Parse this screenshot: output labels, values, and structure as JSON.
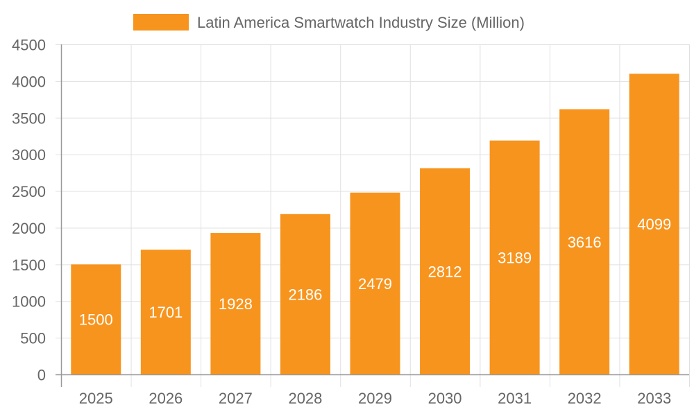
{
  "chart_data": {
    "type": "bar",
    "title": "",
    "xlabel": "",
    "ylabel": "",
    "categories": [
      "2025",
      "2026",
      "2027",
      "2028",
      "2029",
      "2030",
      "2031",
      "2032",
      "2033"
    ],
    "series": [
      {
        "name": "Latin America Smartwatch Industry Size (Million)",
        "values": [
          1500,
          1701,
          1928,
          2186,
          2479,
          2812,
          3189,
          3616,
          4099
        ],
        "color": "#F7941E"
      }
    ],
    "ylim": [
      0,
      4500
    ],
    "yticks": [
      0,
      500,
      1000,
      1500,
      2000,
      2500,
      3000,
      3500,
      4000,
      4500
    ],
    "grid": true,
    "legend": "top-center",
    "data_labels": true
  }
}
